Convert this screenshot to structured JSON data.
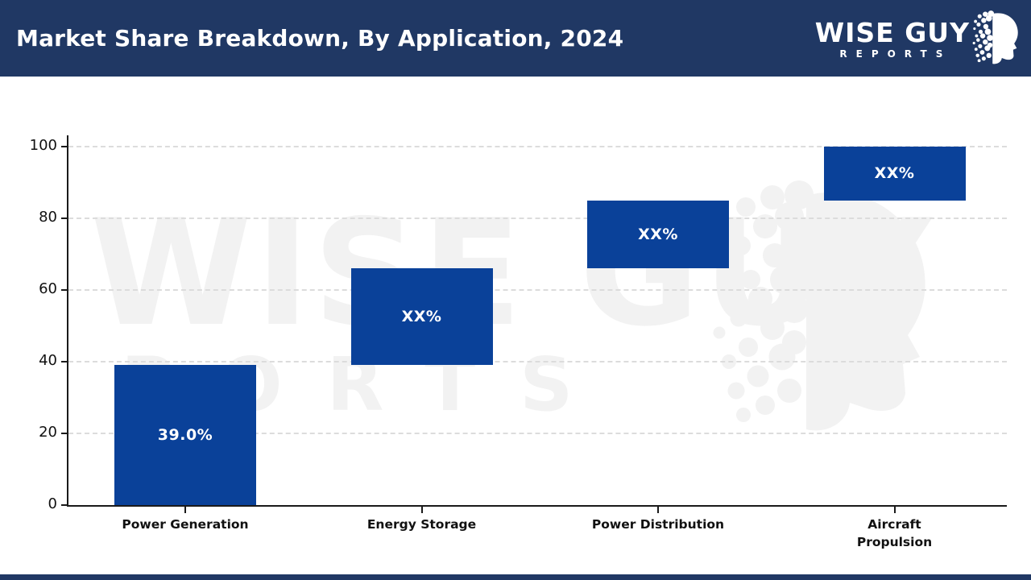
{
  "header": {
    "title": "Market Share Breakdown, By Application, 2024",
    "bg_color": "#203864",
    "logo": {
      "brand_top": "WISE GUY",
      "brand_bottom": "REPORTS"
    }
  },
  "watermark": {
    "line1": "WISE GUY",
    "line2": "PORTS"
  },
  "chart_data": {
    "type": "bar",
    "variant": "waterfall",
    "title": "Market Share Breakdown, By Application, 2024",
    "categories": [
      "Power Generation",
      "Energy Storage",
      "Power Distribution",
      "Aircraft Propulsion"
    ],
    "x_tick_labels": [
      "Power Generation",
      "Energy Storage",
      "Power Distribution",
      "Aircraft\nPropulsion"
    ],
    "segments": [
      {
        "category": "Power Generation",
        "start": 0,
        "end": 39,
        "value": 39.0,
        "label": "39.0%"
      },
      {
        "category": "Energy Storage",
        "start": 39,
        "end": 66,
        "value": 27.0,
        "label": "XX%"
      },
      {
        "category": "Power Distribution",
        "start": 66,
        "end": 85,
        "value": 19.0,
        "label": "XX%"
      },
      {
        "category": "Aircraft Propulsion",
        "start": 85,
        "end": 100,
        "value": 15.0,
        "label": "XX%"
      }
    ],
    "ylim": [
      0,
      100
    ],
    "yticks": [
      0,
      20,
      40,
      60,
      80,
      100
    ],
    "grid": {
      "axis": "y",
      "style": "dashed",
      "color": "#dcdcdc"
    },
    "bar_color": "#0a4199",
    "bar_label_color": "#ffffff",
    "axis_color": "#1a1a1a"
  }
}
